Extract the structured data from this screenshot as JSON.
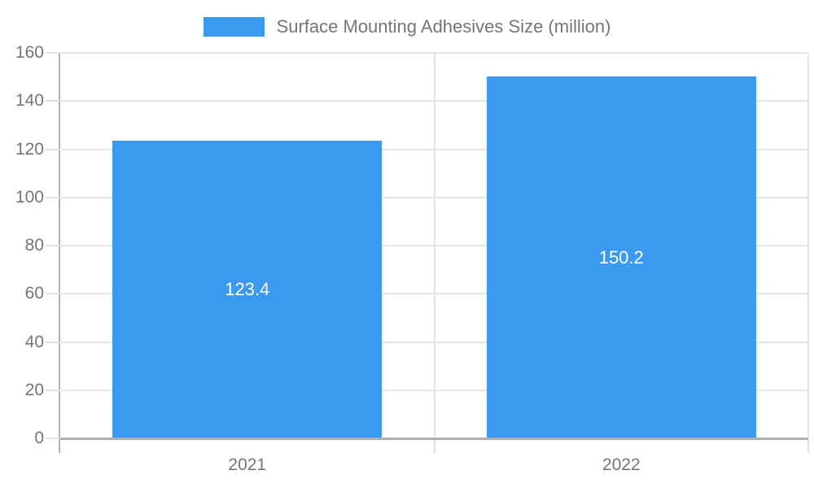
{
  "legend": {
    "label": "Surface Mounting Adhesives Size (million)",
    "position": "top"
  },
  "chart_data": {
    "type": "bar",
    "title": "Surface Mounting Adhesives Size (million)",
    "categories": [
      "2021",
      "2022"
    ],
    "series": [
      {
        "name": "Surface Mounting Adhesives Size (million)",
        "values": [
          123.4,
          150.2
        ],
        "data_labels": [
          "123.4",
          "150.2"
        ]
      }
    ],
    "xlabel": "",
    "ylabel": "",
    "ylim": [
      0,
      160
    ],
    "ytick_step": 20,
    "yticks": [
      0,
      20,
      40,
      60,
      80,
      100,
      120,
      140,
      160
    ],
    "grid": true,
    "legend_position": "top",
    "colors": {
      "bar": "#3B99F0",
      "data_label": "#ffffff",
      "axis_text": "#757575",
      "axis_line": "#b0b0b0",
      "gridline": "#e6e6e6"
    }
  }
}
